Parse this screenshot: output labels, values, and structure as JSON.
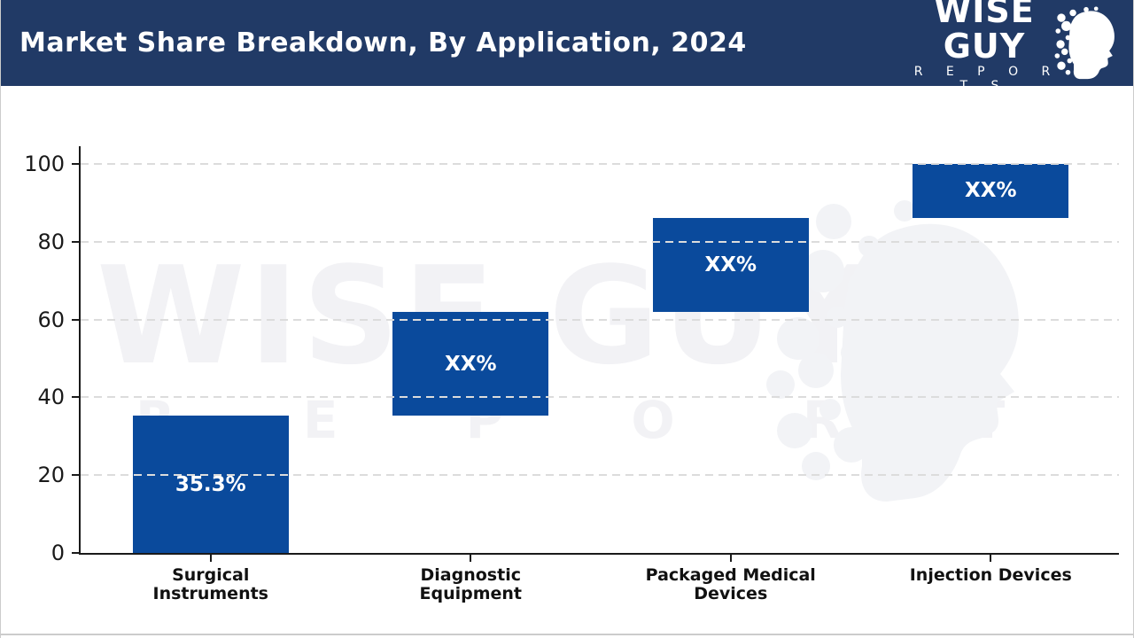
{
  "header": {
    "title": "Market Share Breakdown, By Application, 2024",
    "background_color": "#213a66",
    "logo": {
      "line1": "WISE GUY",
      "line2": "R E P O R T S"
    }
  },
  "watermark": {
    "line1": "WISE GUY",
    "line2": "R E P O R T S"
  },
  "chart_data": {
    "type": "bar",
    "subtype": "waterfall",
    "title": "Market Share Breakdown, By Application, 2024",
    "xlabel": "",
    "ylabel": "",
    "ylim": [
      0,
      105
    ],
    "y_ticks": [
      0,
      20,
      40,
      60,
      80,
      100
    ],
    "grid": true,
    "grid_style": "dashed",
    "categories": [
      [
        "Surgical",
        "Instruments"
      ],
      [
        "Diagnostic",
        "Equipment"
      ],
      [
        "Packaged Medical",
        "Devices"
      ],
      [
        "Injection Devices"
      ]
    ],
    "segments": [
      {
        "category": "Surgical Instruments",
        "start": 0,
        "end": 35.3,
        "label": "35.3%"
      },
      {
        "category": "Diagnostic Equipment",
        "start": 35.3,
        "end": 61.9,
        "label": "XX%"
      },
      {
        "category": "Packaged Medical Devices",
        "start": 61.9,
        "end": 86.1,
        "label": "XX%"
      },
      {
        "category": "Injection Devices",
        "start": 86.1,
        "end": 100,
        "label": "XX%"
      }
    ],
    "bar_color": "#0a4a9c",
    "bar_label_color": "#ffffff",
    "axis_color": "#1a1a1a",
    "gridline_color": "#dcdcdc",
    "tick_label_color": "#1a1a1a"
  }
}
